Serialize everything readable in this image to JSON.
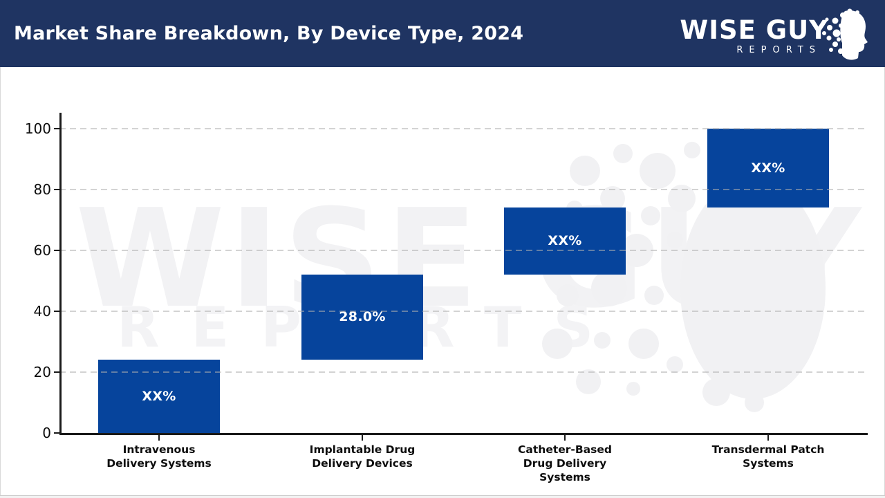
{
  "header": {
    "title": "Market Share Breakdown, By Device Type, 2024",
    "logo": {
      "line1": "WISE GUY",
      "line2": "REPORTS"
    }
  },
  "watermark": {
    "line1": "WISE GUY",
    "line2": "REPORTS"
  },
  "colors": {
    "header_bg": "#1f3462",
    "bar_fill": "#06449c",
    "title_text": "#ffffff",
    "watermark": "#f2f2f4",
    "gridline": "#d8d8d8",
    "axis": "#1a1a1a"
  },
  "chart_data": {
    "type": "bar",
    "subtype": "waterfall",
    "title": "Market Share Breakdown, By Device Type, 2024",
    "xlabel": "",
    "ylabel": "",
    "ylim": [
      0,
      105
    ],
    "yticks": [
      0,
      20,
      40,
      60,
      80,
      100
    ],
    "grid": "dashed-horizontal",
    "legend": "none",
    "bar_color": "#06449c",
    "categories": [
      {
        "name": "Intravenous Delivery Systems",
        "lines": [
          "Intravenous",
          "Delivery Systems"
        ]
      },
      {
        "name": "Implantable Drug Delivery Devices",
        "lines": [
          "Implantable Drug",
          "Delivery Devices"
        ]
      },
      {
        "name": "Catheter-Based Drug Delivery Systems",
        "lines": [
          "Catheter-Based",
          "Drug Delivery",
          "Systems"
        ]
      },
      {
        "name": "Transdermal Patch Systems",
        "lines": [
          "Transdermal Patch",
          "Systems"
        ]
      }
    ],
    "bars": [
      {
        "label": "XX%",
        "start": 0,
        "end": 24.1
      },
      {
        "label": "28.0%",
        "start": 24.1,
        "end": 52.1
      },
      {
        "label": "XX%",
        "start": 52.1,
        "end": 74.1
      },
      {
        "label": "XX%",
        "start": 74.1,
        "end": 100
      }
    ]
  }
}
